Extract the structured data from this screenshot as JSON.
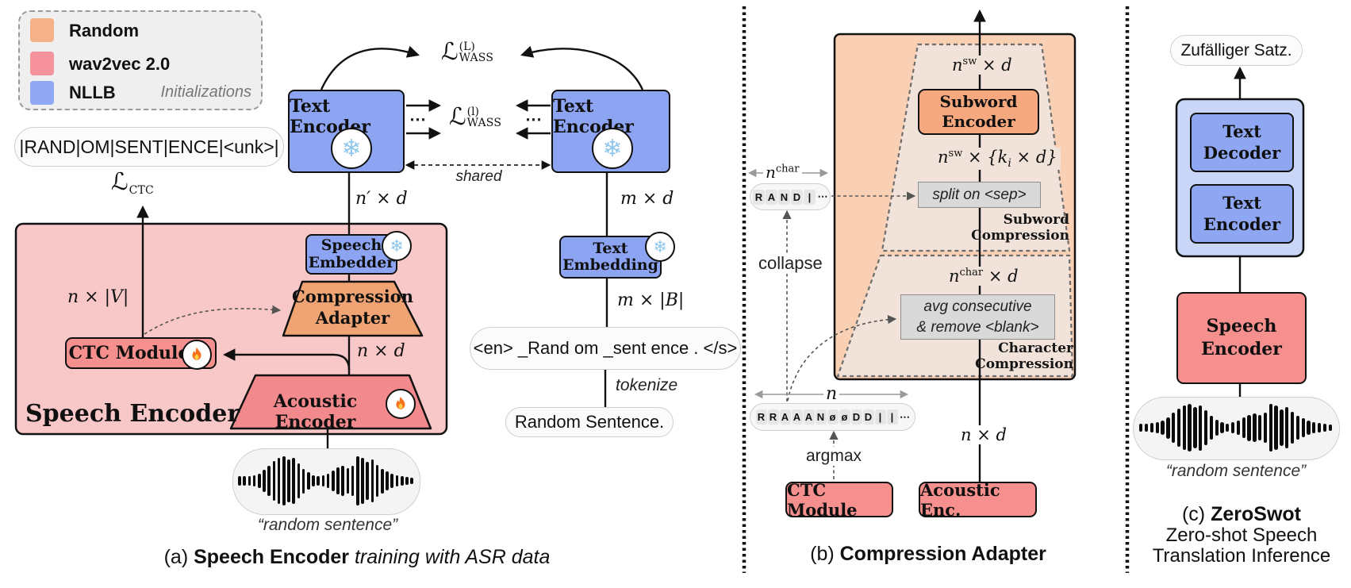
{
  "colors": {
    "random_init": "#F5B289",
    "wav2vec_init": "#F5929B",
    "nllb_init": "#91A8F5",
    "speech_box": "#F8C7C7",
    "module_pink": "#F5908F",
    "adapter_orange": "#F0A473",
    "subword_orange": "#F6A97E",
    "panel_b_bg": "#FAD0B5",
    "trapezoid_fill": "#F2E3DA",
    "blue_box": "#8CA4F2",
    "light_blue_box": "#C9D6F8"
  },
  "icons": {
    "snowflake": "❄"
  },
  "legend": {
    "items": [
      {
        "label": "Random",
        "color": "#F5B289"
      },
      {
        "label": "wav2vec 2.0",
        "color": "#F5929B"
      },
      {
        "label": "NLLB",
        "color": "#91A8F5"
      }
    ],
    "note": "Initializations"
  },
  "waveform": {
    "bars": [
      0.18,
      0.18,
      0.2,
      0.22,
      0.3,
      0.45,
      0.62,
      0.8,
      0.92,
      1.0,
      0.88,
      0.95,
      0.72,
      0.5,
      0.34,
      0.24,
      0.18,
      0.22,
      0.3,
      0.42,
      0.55,
      0.6,
      0.52,
      0.62,
      1.0,
      0.94,
      0.78,
      0.88,
      0.66,
      0.5,
      0.4,
      0.3,
      0.24,
      0.2,
      0.16,
      0.14
    ],
    "caption": "“random sentence”"
  },
  "panel_a": {
    "ctc_targets_pill": "|RAND|OM|SENT|ENCE|<unk>|",
    "loss_ctc": {
      "script_l": "ℒ",
      "sub": "CTC"
    },
    "loss_wass_top": {
      "script_l": "ℒ",
      "sup": "(L)",
      "sub": "WASS"
    },
    "loss_wass_mid": {
      "script_l": "ℒ",
      "sup": "(l)",
      "sub": "WASS"
    },
    "dots": "⋯",
    "text_encoder_left": "Text Encoder",
    "text_encoder_right": "Text Encoder",
    "shared_label": "shared",
    "dim_nprime_d": "n′ × d",
    "dim_m_d": "m × d",
    "speech_embedder": {
      "line1": "Speech",
      "line2": "Embedder"
    },
    "compression_adapter": {
      "line1": "Compression",
      "line2": "Adapter"
    },
    "dim_n_V": "n × |V|",
    "dim_n_d": "n × d",
    "ctc_module": "CTC Module",
    "acoustic_encoder": "Acoustic Encoder",
    "speech_encoder_label": "Speech Encoder",
    "text_embedding": {
      "line1": "Text",
      "line2": "Embedding"
    },
    "dim_m_B": "m × |B|",
    "tokens_pill": "<en> _Rand om _sent ence . </s>",
    "tokenize_label": "tokenize",
    "sentence_pill": "Random Sentence.",
    "caption": {
      "prefix": "(a) ",
      "bold": "Speech Encoder",
      "italic": " training with ASR data"
    }
  },
  "panel_b": {
    "dim_nsw_d": {
      "base": "n",
      "sup": "sw",
      "rest": " × d"
    },
    "subword_encoder": {
      "line1": "Subword",
      "line2": "Encoder"
    },
    "dim_nsw_k": {
      "base": "n",
      "sup": "sw",
      "rest": " × {k",
      "sub": "i",
      "rest2": " × d}"
    },
    "split_box": "split on <sep>",
    "subword_compression": {
      "line1": "Subword",
      "line2": "Compression"
    },
    "dim_nchar": {
      "base": "n",
      "sup": "char"
    },
    "char_pill_cells": [
      "R",
      "A",
      "N",
      "D",
      "|"
    ],
    "ellipsis": "⋯",
    "collapse_label": "collapse",
    "dim_nchar_d": {
      "base": "n",
      "sup": "char",
      "rest": " × d"
    },
    "avg_box": {
      "line1": "avg consecutive",
      "line2": "& remove <blank>"
    },
    "character_compression": {
      "line1": "Character",
      "line2": "Compression"
    },
    "dim_n": "n",
    "ctc_pill_cells": [
      "R",
      "R",
      "A",
      "A",
      "A",
      "N",
      "ø",
      "ø",
      "D",
      "D",
      "|",
      "|"
    ],
    "argmax_label": "argmax",
    "dim_n_d": "n × d",
    "ctc_module": "CTC Module",
    "acoustic_enc": "Acoustic Enc.",
    "caption": {
      "prefix": "(b) ",
      "bold": "Compression Adapter"
    }
  },
  "panel_c": {
    "output_pill": "Zufälliger Satz.",
    "text_decoder": {
      "line1": "Text",
      "line2": "Decoder"
    },
    "text_encoder": {
      "line1": "Text",
      "line2": "Encoder"
    },
    "speech_encoder": {
      "line1": "Speech",
      "line2": "Encoder"
    },
    "caption": {
      "prefix": "(c) ",
      "bold": "ZeroSwot",
      "line2": "Zero-shot Speech",
      "line3": "Translation Inference"
    }
  }
}
